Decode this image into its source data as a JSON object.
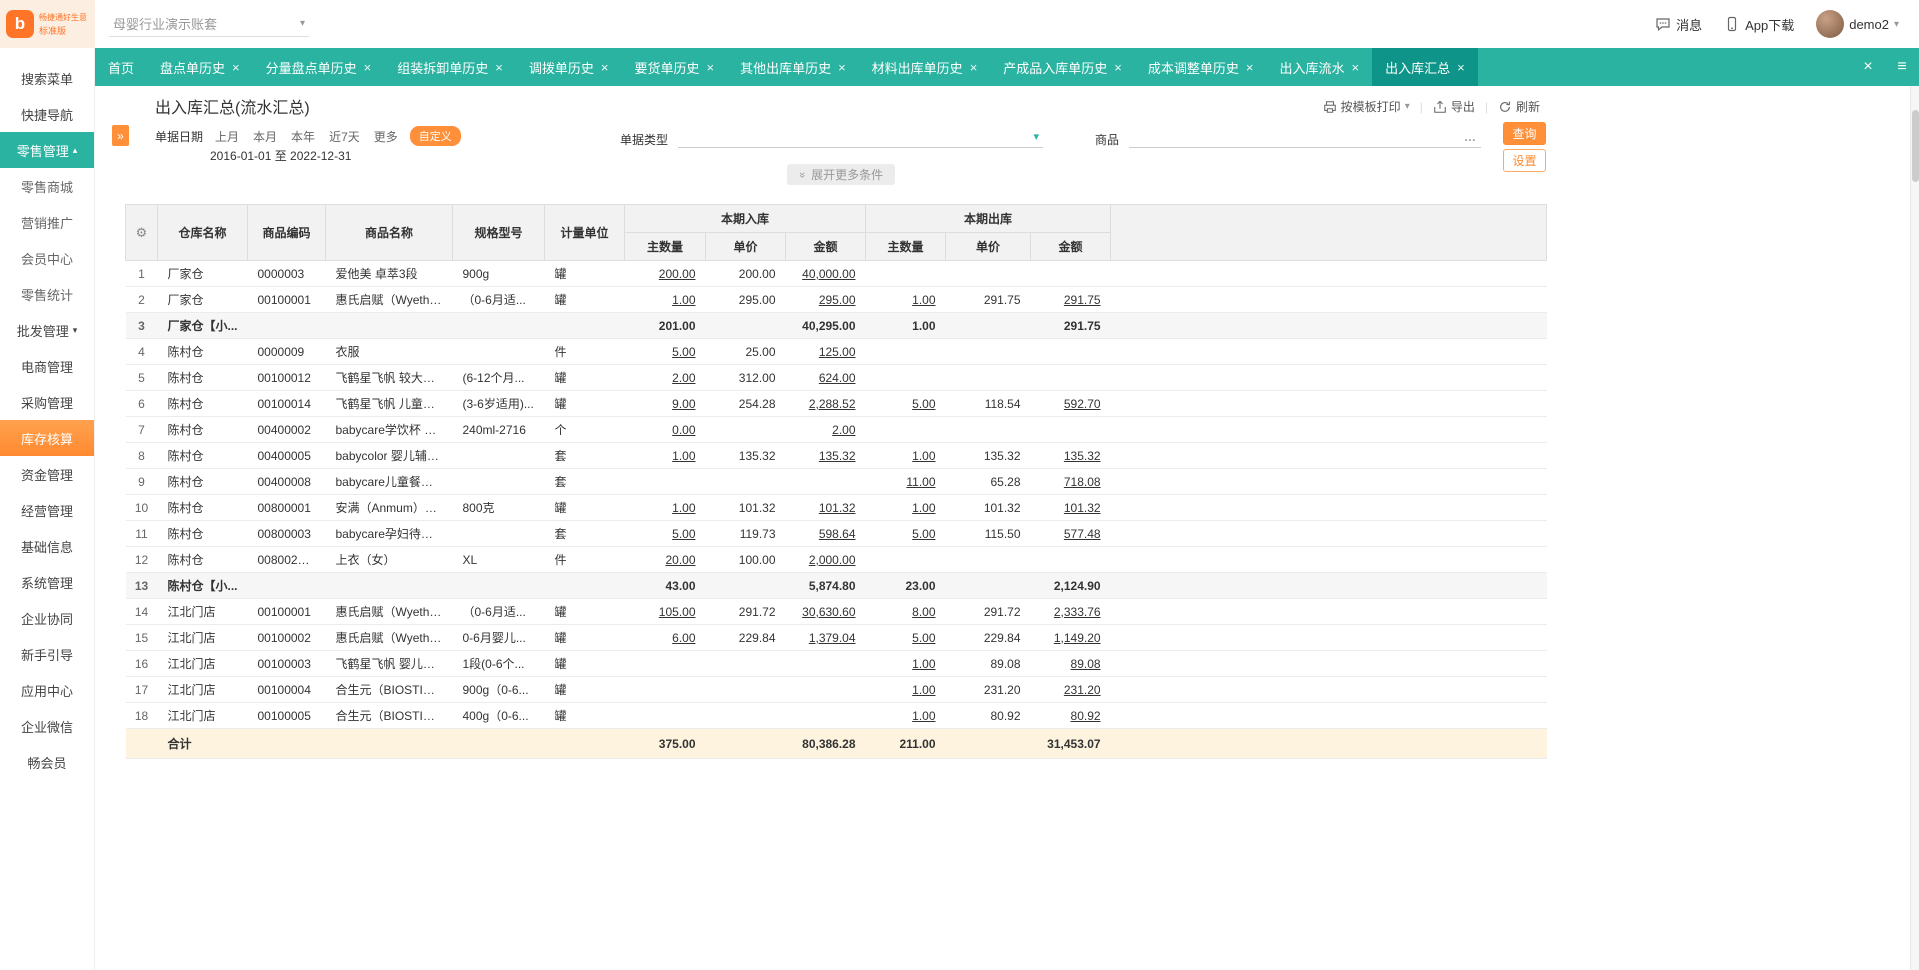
{
  "icons": {
    "gear": "⚙",
    "caret_down": "▾",
    "caret_up": "▴",
    "close": "×",
    "menu": "≡",
    "collapse_right": "»",
    "double_chevron": "»",
    "ellipsis": "…",
    "pipe": "|",
    "logo": "b"
  },
  "topbar": {
    "logo_line1": "畅捷通好生意",
    "logo_line2": "标准版",
    "account": "母婴行业演示账套",
    "messages": "消息",
    "app_download": "App下载",
    "username": "demo2"
  },
  "tabbar": {
    "tabs": [
      {
        "label": "首页",
        "closable": false,
        "active": false
      },
      {
        "label": "盘点单历史",
        "closable": true,
        "active": false
      },
      {
        "label": "分量盘点单历史",
        "closable": true,
        "active": false
      },
      {
        "label": "组装拆卸单历史",
        "closable": true,
        "active": false
      },
      {
        "label": "调拨单历史",
        "closable": true,
        "active": false
      },
      {
        "label": "要货单历史",
        "closable": true,
        "active": false
      },
      {
        "label": "其他出库单历史",
        "closable": true,
        "active": false
      },
      {
        "label": "材料出库单历史",
        "closable": true,
        "active": false
      },
      {
        "label": "产成品入库单历史",
        "closable": true,
        "active": false
      },
      {
        "label": "成本调整单历史",
        "closable": true,
        "active": false
      },
      {
        "label": "出入库流水",
        "closable": true,
        "active": false
      },
      {
        "label": "出入库汇总",
        "closable": true,
        "active": true
      }
    ]
  },
  "sidebar": {
    "items": [
      {
        "label": "搜索菜单",
        "type": "item"
      },
      {
        "label": "快捷导航",
        "type": "item"
      },
      {
        "label": "零售管理",
        "type": "group-open"
      },
      {
        "label": "零售商城",
        "type": "sub"
      },
      {
        "label": "营销推广",
        "type": "sub"
      },
      {
        "label": "会员中心",
        "type": "sub"
      },
      {
        "label": "零售统计",
        "type": "sub"
      },
      {
        "label": "批发管理",
        "type": "group-closed"
      },
      {
        "label": "电商管理",
        "type": "item"
      },
      {
        "label": "采购管理",
        "type": "item"
      },
      {
        "label": "库存核算",
        "type": "active"
      },
      {
        "label": "资金管理",
        "type": "item"
      },
      {
        "label": "经营管理",
        "type": "item"
      },
      {
        "label": "基础信息",
        "type": "item"
      },
      {
        "label": "系统管理",
        "type": "item"
      },
      {
        "label": "企业协同",
        "type": "item"
      },
      {
        "label": "新手引导",
        "type": "item"
      },
      {
        "label": "应用中心",
        "type": "item"
      },
      {
        "label": "企业微信",
        "type": "item"
      },
      {
        "label": "畅会员",
        "type": "item"
      }
    ]
  },
  "page": {
    "title": "出入库汇总(流水汇总)",
    "actions": {
      "print": "按模板打印",
      "export": "导出",
      "refresh": "刷新"
    }
  },
  "filters": {
    "date_label": "单据日期",
    "quick_dates": [
      "上月",
      "本月",
      "本年",
      "近7天",
      "更多"
    ],
    "custom_badge": "自定义",
    "date_range": "2016-01-01 至 2022-12-31",
    "doc_type_label": "单据类型",
    "product_label": "商品",
    "query_button": "查询",
    "settings_button": "设置",
    "expand_more": "展开更多条件"
  },
  "table": {
    "headers": {
      "warehouse": "仓库名称",
      "code": "商品编码",
      "name": "商品名称",
      "spec": "规格型号",
      "unit": "计量单位",
      "in_group": "本期入库",
      "out_group": "本期出库",
      "qty": "主数量",
      "price": "单价",
      "amount": "金额"
    },
    "rows": [
      {
        "num": "1",
        "type": "data",
        "cells": [
          "厂家仓",
          "0000003",
          "爱他美 卓萃3段",
          "900g",
          "罐",
          "200.00",
          "200.00",
          "40,000.00",
          "",
          "",
          ""
        ]
      },
      {
        "num": "2",
        "type": "data",
        "cells": [
          "厂家仓",
          "00100001",
          "惠氏启赋（Wyeth illu...",
          "（0-6月适...",
          "罐",
          "1.00",
          "295.00",
          "295.00",
          "1.00",
          "291.75",
          "291.75"
        ]
      },
      {
        "num": "3",
        "type": "subtotal",
        "cells": [
          "厂家仓【小...",
          "",
          "",
          "",
          "",
          "201.00",
          "",
          "40,295.00",
          "1.00",
          "",
          "291.75"
        ]
      },
      {
        "num": "4",
        "type": "data",
        "cells": [
          "陈村仓",
          "0000009",
          "衣服",
          "",
          "件",
          "5.00",
          "25.00",
          "125.00",
          "",
          "",
          ""
        ]
      },
      {
        "num": "5",
        "type": "data",
        "cells": [
          "陈村仓",
          "00100012",
          "飞鹤星飞帆 较大婴儿配...",
          "(6-12个月...",
          "罐",
          "2.00",
          "312.00",
          "624.00",
          "",
          "",
          ""
        ]
      },
      {
        "num": "6",
        "type": "data",
        "cells": [
          "陈村仓",
          "00100014",
          "飞鹤星飞帆 儿童奶粉 4...",
          "(3-6岁适用)...",
          "罐",
          "9.00",
          "254.28",
          "2,288.52",
          "5.00",
          "118.54",
          "592.70"
        ]
      },
      {
        "num": "7",
        "type": "data",
        "cells": [
          "陈村仓",
          "00400002",
          "babycare学饮杯 儿童...",
          "240ml-2716",
          "个",
          "0.00",
          "",
          "2.00",
          "",
          "",
          ""
        ]
      },
      {
        "num": "8",
        "type": "data",
        "cells": [
          "陈村仓",
          "00400005",
          "babycolor 婴儿辅食机 ...",
          "",
          "套",
          "1.00",
          "135.32",
          "135.32",
          "1.00",
          "135.32",
          "135.32"
        ]
      },
      {
        "num": "9",
        "type": "data",
        "cells": [
          "陈村仓",
          "00400008",
          "babycare儿童餐具 婴...",
          "",
          "套",
          "",
          "",
          "",
          "11.00",
          "65.28",
          "718.08"
        ]
      },
      {
        "num": "10",
        "type": "data",
        "cells": [
          "陈村仓",
          "00800001",
          "安满（Anmum）智孕...",
          "800克",
          "罐",
          "1.00",
          "101.32",
          "101.32",
          "1.00",
          "101.32",
          "101.32"
        ]
      },
      {
        "num": "11",
        "type": "data",
        "cells": [
          "陈村仓",
          "00800003",
          "babycare孕妇待产包 ...",
          "",
          "套",
          "5.00",
          "119.73",
          "598.64",
          "5.00",
          "115.50",
          "577.48"
        ]
      },
      {
        "num": "12",
        "type": "data",
        "cells": [
          "陈村仓",
          "008002000...",
          "上衣（女）",
          "XL",
          "件",
          "20.00",
          "100.00",
          "2,000.00",
          "",
          "",
          ""
        ]
      },
      {
        "num": "13",
        "type": "subtotal",
        "cells": [
          "陈村仓【小...",
          "",
          "",
          "",
          "",
          "43.00",
          "",
          "5,874.80",
          "23.00",
          "",
          "2,124.90"
        ]
      },
      {
        "num": "14",
        "type": "data",
        "cells": [
          "江北门店",
          "00100001",
          "惠氏启赋（Wyeth illu...",
          "（0-6月适...",
          "罐",
          "105.00",
          "291.72",
          "30,630.60",
          "8.00",
          "291.72",
          "2,333.76"
        ]
      },
      {
        "num": "15",
        "type": "data",
        "cells": [
          "江北门店",
          "00100002",
          "惠氏启赋（Wyeth illu...",
          "0-6月婴儿...",
          "罐",
          "6.00",
          "229.84",
          "1,379.04",
          "5.00",
          "229.84",
          "1,149.20"
        ]
      },
      {
        "num": "16",
        "type": "data",
        "cells": [
          "江北门店",
          "00100003",
          "飞鹤星飞帆 婴儿配方奶...",
          "1段(0-6个...",
          "罐",
          "",
          "",
          "",
          "1.00",
          "89.08",
          "89.08"
        ]
      },
      {
        "num": "17",
        "type": "data",
        "cells": [
          "江北门店",
          "00100004",
          "合生元（BIOSTIME）...",
          "900g（0-6...",
          "罐",
          "",
          "",
          "",
          "1.00",
          "231.20",
          "231.20"
        ]
      },
      {
        "num": "18",
        "type": "data",
        "cells": [
          "江北门店",
          "00100005",
          "合生元（BIOSTIME）...",
          "400g（0-6...",
          "罐",
          "",
          "",
          "",
          "1.00",
          "80.92",
          "80.92"
        ]
      }
    ],
    "footer": {
      "num": "",
      "type": "total",
      "cells": [
        "合计",
        "",
        "",
        "",
        "",
        "375.00",
        "",
        "80,386.28",
        "211.00",
        "",
        "31,453.07"
      ]
    }
  }
}
